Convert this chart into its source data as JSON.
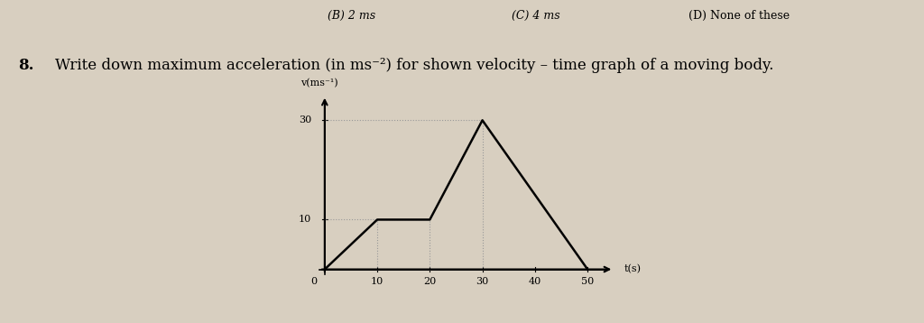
{
  "title_line1": "8.   Write down maximum acceleration (in ms⁻²) for shown velocity – time graph of a moving body.",
  "header_text": "(B) 2 ms                    (C) 4 ms                         (D) None of these",
  "graph_points_t": [
    0,
    10,
    20,
    30,
    50
  ],
  "graph_points_v": [
    0,
    10,
    10,
    30,
    0
  ],
  "xlabel": "t(s)",
  "ylabel": "v(ms⁻¹)",
  "xticks": [
    10,
    20,
    30,
    40,
    50
  ],
  "yticks": [
    10,
    30
  ],
  "xlim": [
    -2,
    56
  ],
  "ylim": [
    -3,
    36
  ],
  "line_color": "#000000",
  "dot_line_color": "#999999",
  "dot_linewidth": 0.8,
  "linewidth": 1.8,
  "dotted_h_lines": [
    {
      "y": 10,
      "x_start": 0,
      "x_end": 20
    },
    {
      "y": 30,
      "x_start": 0,
      "x_end": 30
    }
  ],
  "dotted_v_lines": [
    {
      "x": 10,
      "y_start": 0,
      "y_end": 10
    },
    {
      "x": 20,
      "y_start": 0,
      "y_end": 10
    },
    {
      "x": 30,
      "y_start": 0,
      "y_end": 30
    }
  ],
  "fig_width": 10.24,
  "fig_height": 3.58,
  "dpi": 100,
  "bg_color": "#d8cfc0",
  "title_fontsize": 12,
  "tick_fontsize": 8,
  "axis_label_fontsize": 8
}
